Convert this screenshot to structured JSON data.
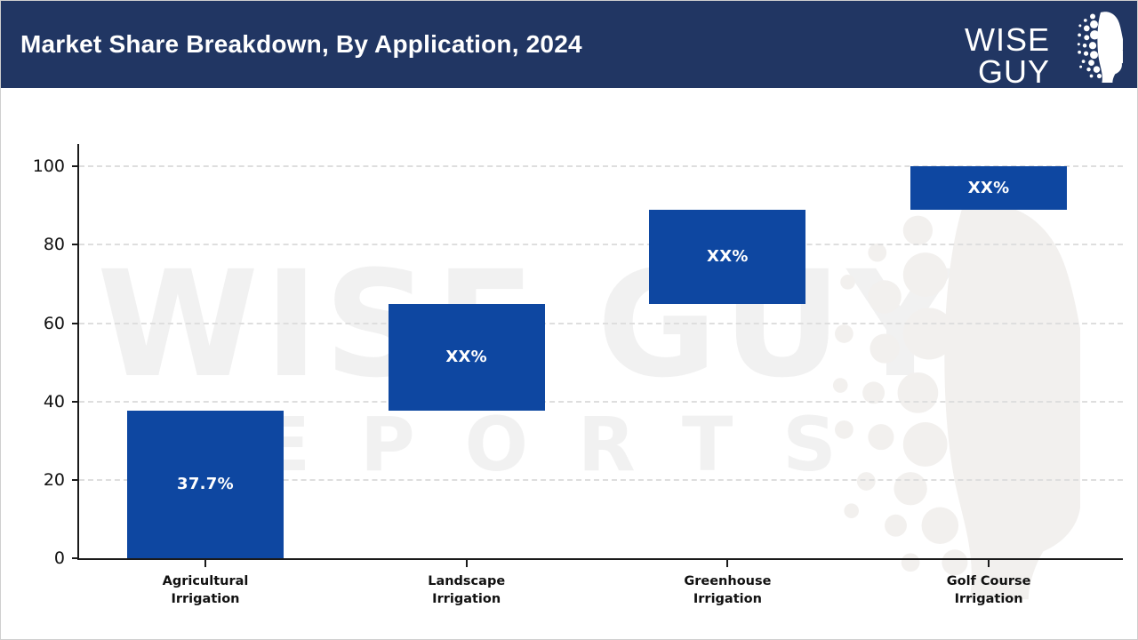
{
  "header": {
    "title": "Market Share Breakdown, By Application, 2024",
    "logo": {
      "line1": "WISE GUY",
      "line2": "REPORTS"
    }
  },
  "watermark": {
    "line1": "WISE GUY",
    "line2": "REPORTS"
  },
  "colors": {
    "header_bg": "#213663",
    "bar": "#0e47a1",
    "grid": "#dedede",
    "axis": "#1a1a1a",
    "watermark": "#f1f1f1"
  },
  "chart_data": {
    "type": "bar",
    "subtype": "waterfall",
    "title": "Market Share Breakdown, By Application, 2024",
    "unit": "%",
    "categories": [
      "Agricultural Irrigation",
      "Landscape Irrigation",
      "Greenhouse Irrigation",
      "Golf Course Irrigation"
    ],
    "category_lines": [
      [
        "Agricultural",
        "Irrigation"
      ],
      [
        "Landscape",
        "Irrigation"
      ],
      [
        "Greenhouse",
        "Irrigation"
      ],
      [
        "Golf Course",
        "Irrigation"
      ]
    ],
    "segments": [
      {
        "category": "Agricultural Irrigation",
        "start": 0,
        "end": 37.7,
        "label": "37.7%"
      },
      {
        "category": "Landscape Irrigation",
        "start": 37.7,
        "end": 65,
        "label": "XX%"
      },
      {
        "category": "Greenhouse Irrigation",
        "start": 65,
        "end": 89,
        "label": "XX%"
      },
      {
        "category": "Golf Course Irrigation",
        "start": 89,
        "end": 100,
        "label": "XX%"
      }
    ],
    "yticks": [
      0,
      20,
      40,
      60,
      80,
      100
    ],
    "ylim": [
      0,
      106
    ],
    "xlabel": "",
    "ylabel": "",
    "grid": true,
    "gridstyle": "dashed",
    "legend": "none"
  }
}
